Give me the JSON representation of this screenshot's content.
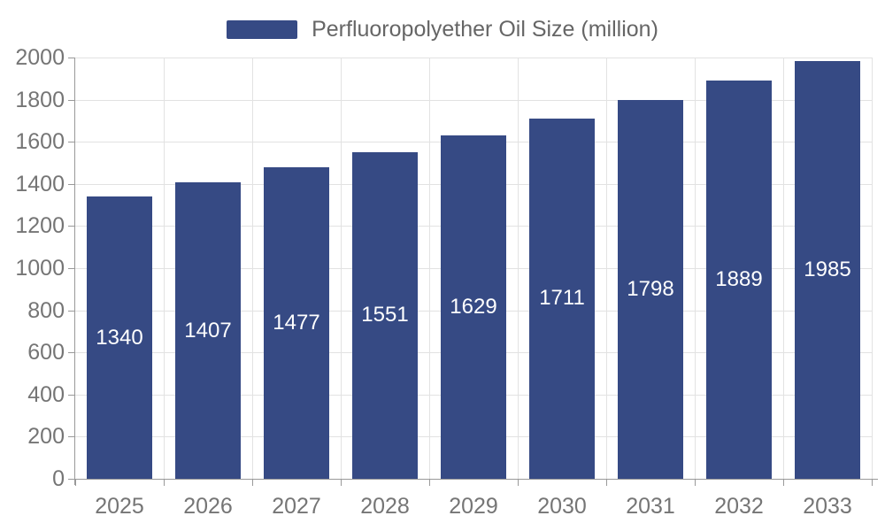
{
  "chart_data": {
    "type": "bar",
    "title": "",
    "legend": "Perfluoropolyether Oil Size (million)",
    "legend_position": "top",
    "categories": [
      "2025",
      "2026",
      "2027",
      "2028",
      "2029",
      "2030",
      "2031",
      "2032",
      "2033"
    ],
    "series": [
      {
        "name": "Perfluoropolyether Oil Size (million)",
        "values": [
          1340,
          1407,
          1477,
          1551,
          1629,
          1711,
          1798,
          1889,
          1985
        ]
      }
    ],
    "values": [
      1340,
      1407,
      1477,
      1551,
      1629,
      1711,
      1798,
      1889,
      1985
    ],
    "value_labels": [
      "1340",
      "1407",
      "1477",
      "1551",
      "1629",
      "1711",
      "1798",
      "1889",
      "1985"
    ],
    "xlabel": "",
    "ylabel": "",
    "ylim": [
      0,
      2000
    ],
    "ytick_step": 200,
    "yticks": [
      0,
      200,
      400,
      600,
      800,
      1000,
      1200,
      1400,
      1600,
      1800,
      2000
    ],
    "grid": true,
    "colors": {
      "bar": "#364a84",
      "bar_value_text": "#ffffff",
      "axis_label": "#757575",
      "legend_text": "#666666",
      "gridline": "#e2e2e2",
      "axis_line": "#999999"
    }
  }
}
